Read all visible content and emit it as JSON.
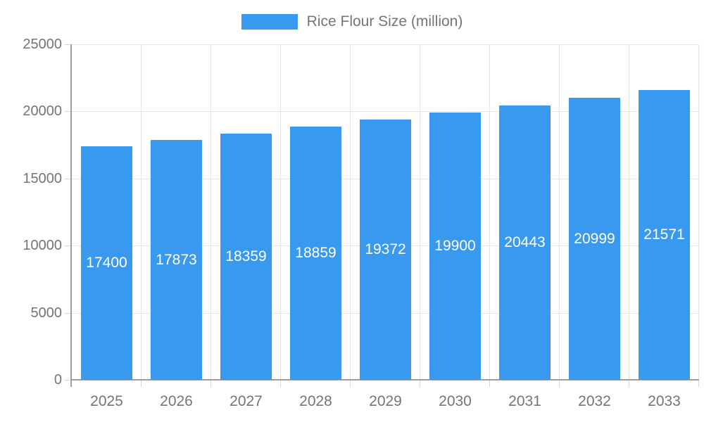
{
  "legend": {
    "label": "Rice Flour Size (million)",
    "position": "top-center"
  },
  "chart_data": {
    "type": "bar",
    "title": "",
    "categories": [
      "2025",
      "2026",
      "2027",
      "2028",
      "2029",
      "2030",
      "2031",
      "2032",
      "2033"
    ],
    "series": [
      {
        "name": "Rice Flour Size (million)",
        "values": [
          17400,
          17873,
          18359,
          18859,
          19372,
          19900,
          20443,
          20999,
          21571
        ]
      }
    ],
    "bar_value_labels": [
      "17400",
      "17873",
      "18359",
      "18859",
      "19372",
      "19900",
      "20443",
      "20999",
      "21571"
    ],
    "xlabel": "",
    "ylabel": "",
    "ylim": [
      0,
      25000
    ],
    "yticks": [
      0,
      5000,
      10000,
      15000,
      20000,
      25000
    ],
    "ytick_labels": [
      "0",
      "5000",
      "10000",
      "15000",
      "20000",
      "25000"
    ],
    "grid": "horizontal and vertical gridlines, light gray",
    "legend_position": "top-center",
    "colors": {
      "bar": "#3899ee",
      "bar_label_text": "#ffffff",
      "grid": "#e6e6e6",
      "axis": "#9e9e9e",
      "tick": "#d6d6d6",
      "tick_label_text": "#757575",
      "legend_text": "#757575",
      "background": "#ffffff"
    }
  }
}
